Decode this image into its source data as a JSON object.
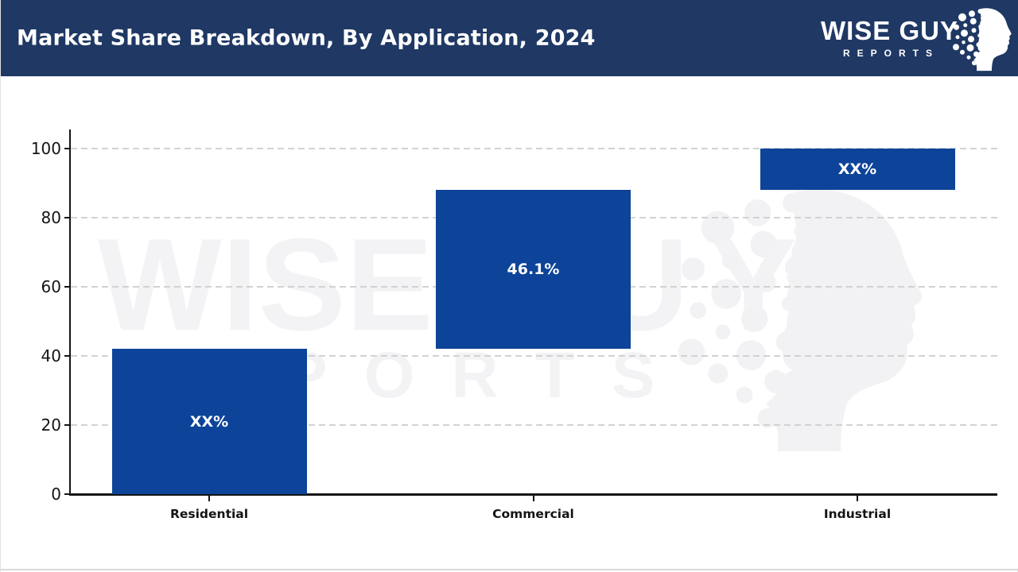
{
  "header": {
    "title": "Market Share Breakdown, By Application, 2024",
    "logo_line1": "WISE GUY",
    "logo_line2": "REPORTS"
  },
  "watermark": {
    "word1": "WISE",
    "word2": "GUY",
    "word3": "REPORTS"
  },
  "colors": {
    "header_bg": "#1f3864",
    "bar": "#0d4499",
    "grid": "#d2d2d2",
    "axis": "#141414",
    "bar_label_text": "#ffffff",
    "watermark_gray": "#f3f3f5"
  },
  "chart_data": {
    "type": "bar",
    "subtype": "waterfall-stacked segments: each category's bar begins where the previous category's bar ended",
    "title": "Market Share Breakdown, By Application, 2024",
    "categories": [
      "Residential",
      "Commercial",
      "Industrial"
    ],
    "series": [
      {
        "category": "Residential",
        "start": 0,
        "end": 42.0,
        "height": 42.0,
        "value_label": "XX%"
      },
      {
        "category": "Commercial",
        "start": 42.0,
        "end": 88.1,
        "height": 46.1,
        "value_label": "46.1%"
      },
      {
        "category": "Industrial",
        "start": 88.1,
        "end": 100.0,
        "height": 11.9,
        "value_label": "XX%"
      }
    ],
    "xlabel": "",
    "ylabel": "",
    "ylim": [
      0,
      105.5
    ],
    "yticks": [
      0,
      20,
      40,
      60,
      80,
      100
    ],
    "grid": "horizontal dashed gridlines at y ticks",
    "legend": "none"
  }
}
